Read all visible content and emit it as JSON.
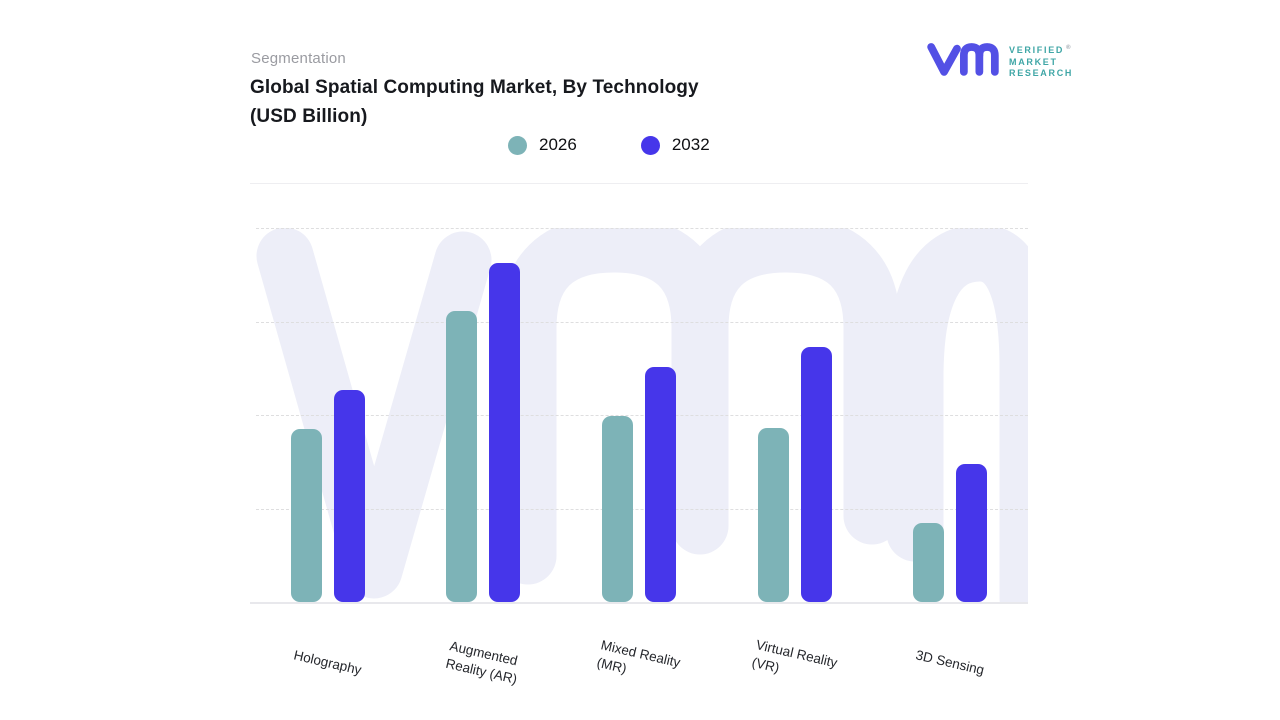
{
  "header": {
    "eyebrow": "Segmentation",
    "title_line1": "Global Spatial Computing Market, By Technology",
    "title_line2": "(USD Billion)"
  },
  "brand": {
    "wordmark_line1": "VERIFIED",
    "wordmark_line2": "MARKET",
    "wordmark_line3": "RESEARCH",
    "registered_symbol": "®",
    "mark_color": "#5350e5",
    "wordmark_color": "#3fa6a6"
  },
  "colors": {
    "series_2026": "#7DB3B7",
    "series_2032": "#4636EA",
    "watermark": "#EDEEF8",
    "gridline": "#DEDEDF",
    "baseline": "#E8E8EC",
    "title_text": "#17191E",
    "eyebrow_text": "#9A9BA1"
  },
  "chart_data": {
    "type": "bar",
    "title": "Global Spatial Computing Market, By Technology (USD Billion)",
    "xlabel": "",
    "ylabel": "",
    "categories": [
      "Holography",
      "Augmented Reality (AR)",
      "Mixed Reality (MR)",
      "Virtual Reality (VR)",
      "3D Sensing"
    ],
    "category_label_lines": [
      [
        "Holography"
      ],
      [
        "Augmented",
        "Reality (AR)"
      ],
      [
        "Mixed Reality",
        "(MR)"
      ],
      [
        "Virtual Reality",
        "(VR)"
      ],
      [
        "3D Sensing"
      ]
    ],
    "series": [
      {
        "name": "2026",
        "color": "#7DB3B7",
        "values": [
          46.3,
          77.8,
          49.7,
          46.5,
          21.1
        ]
      },
      {
        "name": "2032",
        "color": "#4636EA",
        "values": [
          56.7,
          90.6,
          62.8,
          68.2,
          36.9
        ]
      }
    ],
    "value_scale": "percent_of_plot_height_estimated",
    "ylim": [
      0,
      100
    ],
    "y_tick_labels_visible": false,
    "grid": "horizontal dashed, 4 lines",
    "legend_position": "top-center",
    "bar_corner_radius": 9,
    "x_label_rotation_deg": 13
  }
}
